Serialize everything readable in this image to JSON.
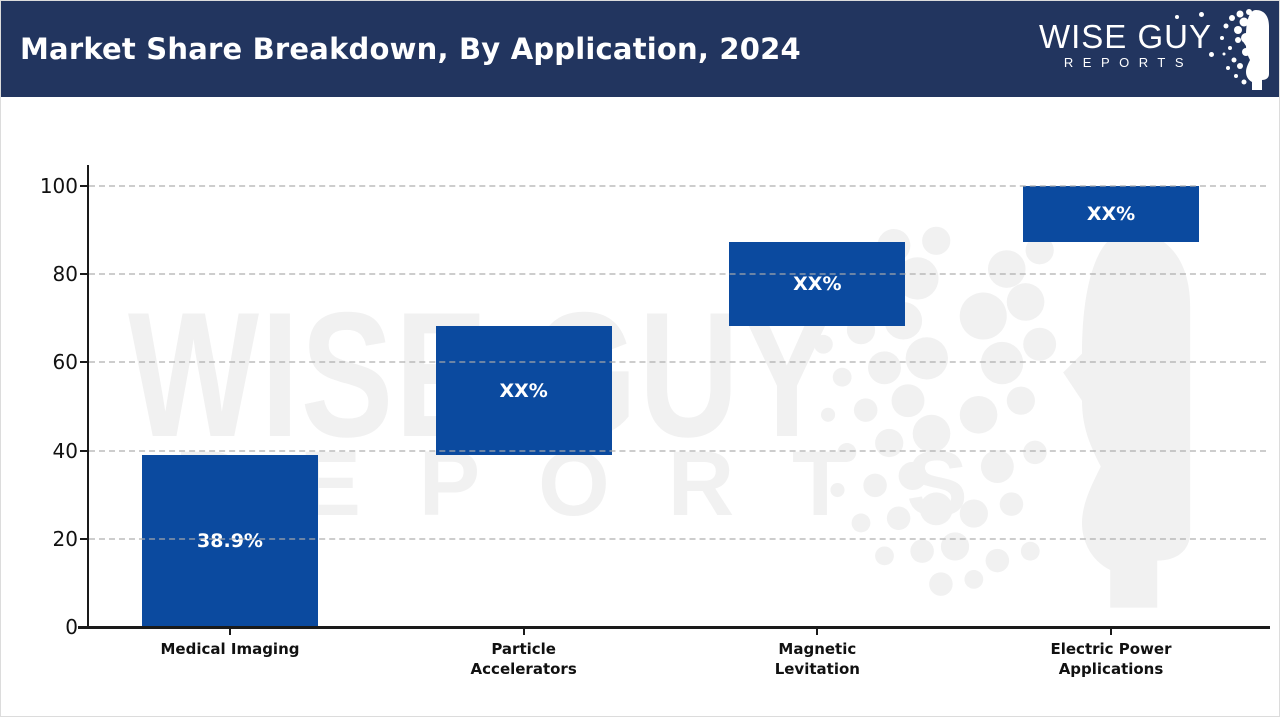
{
  "header": {
    "title": "Market Share Breakdown, By Application, 2024",
    "logo": {
      "primary": "WISE GUY",
      "secondary": "REPORTS"
    }
  },
  "watermark": {
    "line1": "WISE GUY",
    "line2": "REPORTS"
  },
  "chart_data": {
    "type": "bar",
    "subtype": "floating-segment-waterfall",
    "title": "Market Share Breakdown, By Application, 2024",
    "categories": [
      "Medical Imaging",
      "Particle Accelerators",
      "Magnetic Levitation",
      "Electric Power Applications"
    ],
    "category_label_lines": [
      [
        "Medical Imaging"
      ],
      [
        "Particle",
        "Accelerators"
      ],
      [
        "Magnetic",
        "Levitation"
      ],
      [
        "Electric Power",
        "Applications"
      ]
    ],
    "series": [
      {
        "name": "Market share (%)",
        "segments": [
          {
            "category": "Medical Imaging",
            "start": 0,
            "end": 38.9,
            "label": "38.9%"
          },
          {
            "category": "Particle Accelerators",
            "start": 38.9,
            "end": 68.3,
            "label": "XX%"
          },
          {
            "category": "Magnetic Levitation",
            "start": 68.3,
            "end": 87.3,
            "label": "XX%"
          },
          {
            "category": "Electric Power Applications",
            "start": 87.3,
            "end": 100,
            "label": "XX%"
          }
        ]
      }
    ],
    "xlabel": "",
    "ylabel": "",
    "ylim": [
      0,
      100
    ],
    "yticks": [
      0,
      20,
      40,
      60,
      80,
      100
    ],
    "grid": true,
    "grid_style": "dashed",
    "legend": false
  },
  "colors": {
    "header_bg": "#22355f",
    "bar": "#0b4a9f",
    "axis": "#1a1a1a",
    "grid": "#d0d0d0",
    "watermark": "#f1f1f1",
    "bar_label": "#ffffff",
    "frame": "#dcdcdc"
  }
}
